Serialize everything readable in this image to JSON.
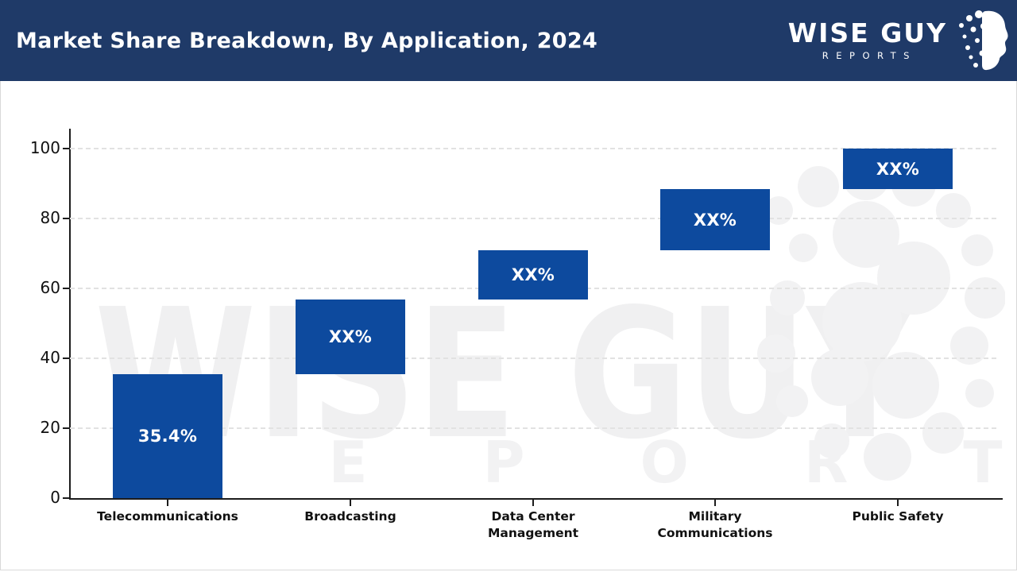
{
  "header": {
    "title": "Market Share Breakdown, By Application, 2024",
    "bg_color": "#1f3a68",
    "logo": {
      "wordmark": "WISE GUY",
      "subtext": "REPORTS",
      "icon": "dotted-face-profile"
    }
  },
  "watermark": {
    "line1": "WISE GUY",
    "line2": "R E P O R T S",
    "icon": "dotted-face-profile"
  },
  "chart_data": {
    "type": "bar",
    "subtype": "waterfall",
    "title": "Market Share Breakdown, By Application, 2024",
    "xlabel": "",
    "ylabel": "",
    "ylim": [
      0,
      105
    ],
    "y_ticks": [
      0,
      20,
      40,
      60,
      80,
      100
    ],
    "grid": "horizontal-dashed",
    "legend": "none",
    "bar_color": "#0d4a9e",
    "label_color": "#ffffff",
    "categories": [
      "Telecommunications",
      "Broadcasting",
      "Data Center\nManagement",
      "Military\nCommunications",
      "Public Safety"
    ],
    "segments": [
      {
        "start": 0,
        "end": 35.4,
        "value": 35.4,
        "label": "35.4%"
      },
      {
        "start": 35.4,
        "end": 56.8,
        "value": 21.4,
        "label": "XX%"
      },
      {
        "start": 56.8,
        "end": 70.8,
        "value": 14.0,
        "label": "XX%"
      },
      {
        "start": 70.8,
        "end": 88.4,
        "value": 17.6,
        "label": "XX%"
      },
      {
        "start": 88.4,
        "end": 100,
        "value": 11.6,
        "label": "XX%"
      }
    ]
  }
}
